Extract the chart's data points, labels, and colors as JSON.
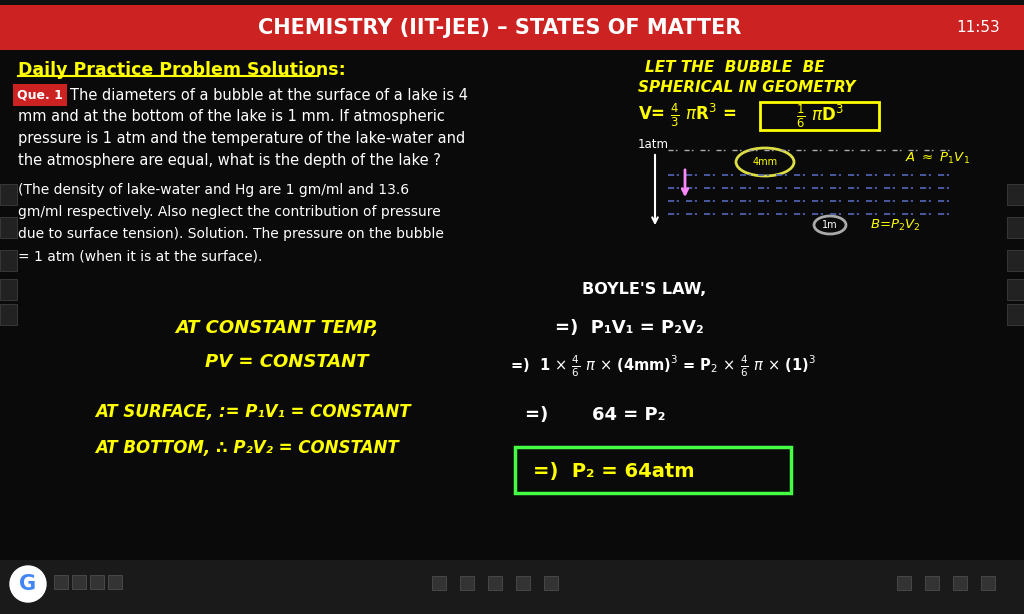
{
  "title": "CHEMISTRY (IIT-JEE) – STATES OF MATTER",
  "time": "11:53",
  "bg_color": "#0a0a0a",
  "header_color": "#cc2222",
  "header_text_color": "#ffffff",
  "section_heading": "Daily Practice Problem Solutions:",
  "que_label": "Que. 1",
  "que_label_bg": "#cc2222",
  "que_label_text": "#ffffff",
  "yellow_color": "#ffff00",
  "green_color": "#44ff44",
  "white_color": "#ffffff",
  "cyan_color": "#aaaaff",
  "magenta_color": "#ff88ff",
  "question_lines": [
    "The diameters of a bubble at the surface of a lake is 4",
    "mm and at the bottom of the lake is 1 mm. If atmospheric",
    "pressure is 1 atm and the temperature of the lake-water and",
    "the atmosphere are equal, what is the depth of the lake ?"
  ],
  "para_lines": [
    "(The density of lake-water and Hg are 1 gm/ml and 13.6",
    "gm/ml respectively. Also neglect the contribution of pressure",
    "due to surface tension). Solution. The pressure on the bubble",
    "= 1 atm (when it is at the surface)."
  ],
  "right_note1": "LET THE  BUBBLE  BE",
  "right_note2": "SPHERICAL IN GEOMETRY",
  "boyle": "BOYLE'S LAW,",
  "line1": "AT CONSTANT TEMP,",
  "line2": "PV = CONSTANT",
  "line3": "AT SURFACE, := P₁V₁ = CONSTANT",
  "line4": "AT BOTTOM, ∴ P₂V₂ = CONSTANT",
  "eq1": "=)  P₁V₁ = P₂V₂",
  "eq3": "=)       64 = P₂",
  "eq4": "=)  P₂ = 64atm"
}
